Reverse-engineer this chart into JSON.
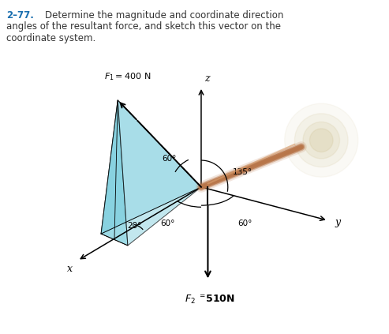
{
  "title_number": "2–77.",
  "title_text": "Determine the magnitude and coordinate direction\nangles of the resultant force, and sketch this vector on the\ncoordinate system.",
  "title_color_number": "#1a6faf",
  "title_color_text": "#333333",
  "F1_label": "$F_1 = 400\\ \\mathrm{N}$",
  "F2_label": "$F_2\\!=\\!510\\mathrm{N}$",
  "angle_60_top": "60°",
  "angle_20": "20°",
  "angle_60_bottom": "60°",
  "angle_135": "135°",
  "angle_60_y": "60°",
  "axis_x": "x",
  "axis_y": "y",
  "axis_z": "z",
  "cyan_fill": "#a8dde8",
  "cyan_fill2": "#7ecfde",
  "cyan_edge": "#000000",
  "rod_color": "#b8764a",
  "rod_shadow": "#8a5030",
  "background": "#ffffff",
  "figsize": [
    4.93,
    4.23
  ],
  "dpi": 100,
  "ox": 0.52,
  "oy": 0.44
}
